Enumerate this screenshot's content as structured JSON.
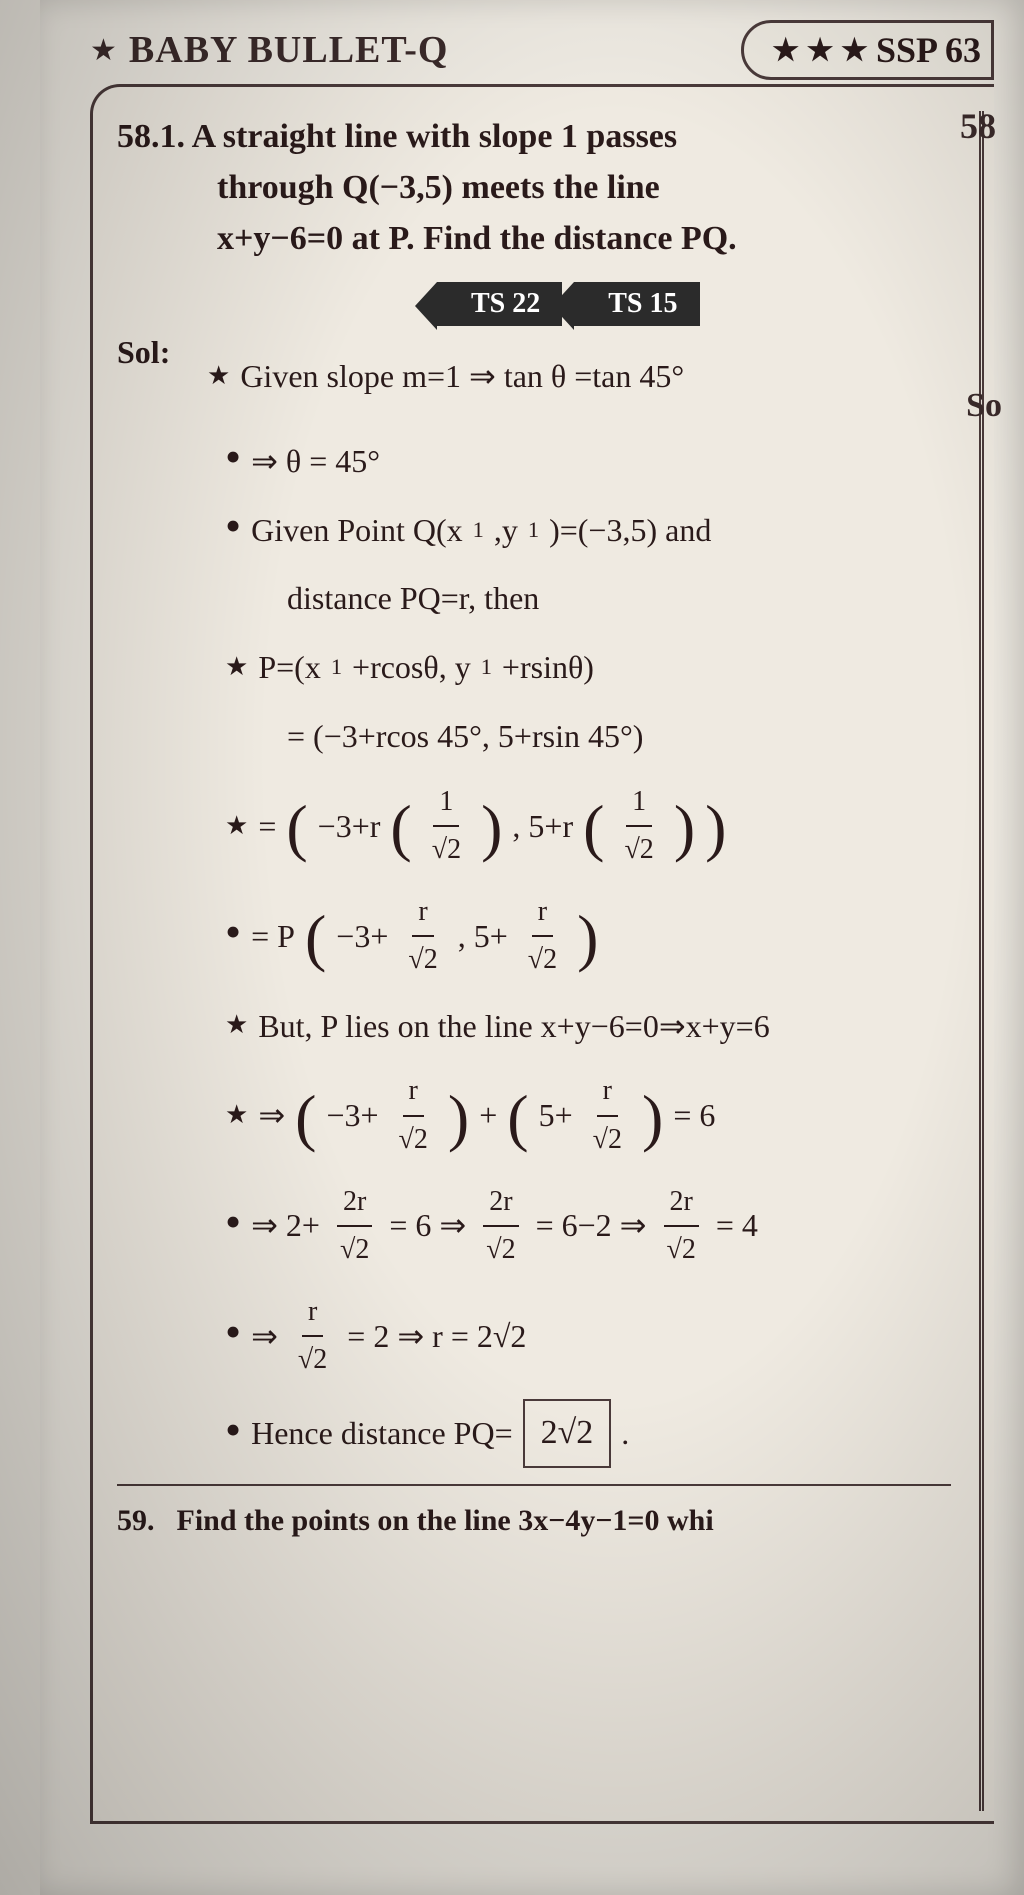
{
  "header": {
    "title": "BABY BULLET-Q",
    "ssp_stars": "★ ★ ★",
    "ssp_label": "SSP 63"
  },
  "gutter": {
    "top_num": "58",
    "mid_label": "So"
  },
  "question": {
    "number": "58.1.",
    "line1": "A straight line with slope 1 passes",
    "line2": "through Q(−3,5) meets the line",
    "line3": "x+y−6=0 at P. Find the distance PQ."
  },
  "tags": {
    "ts1": "TS 22",
    "ts2": "TS 15"
  },
  "sol": {
    "label": "Sol:",
    "l1a": "Given slope m=1 ⇒ tan θ =tan 45°",
    "l2": "⇒ θ = 45°",
    "l3a": "Given Point Q(x",
    "l3b": ",y",
    "l3c": ")=(−3,5) and",
    "l3d": "distance PQ=r, then",
    "l4a": "P=(x",
    "l4b": "+rcosθ, y",
    "l4c": "+rsinθ)",
    "l5": "= (−3+rcos 45°, 5+rsin 45°)",
    "eq6_pre": "=",
    "eq6_a": "−3+r",
    "eq6_b": ", 5+r",
    "frac1_n": "1",
    "frac1_d": "√2",
    "eq7_pre": "= P",
    "eq7_a": "−3+",
    "eq7_b": ", 5+",
    "fracr_n": "r",
    "fracr_d": "√2",
    "l8": "But, P lies on the line x+y−6=0⇒x+y=6",
    "eq9_pre": "⇒",
    "eq9_a": "−3+",
    "eq9_b": "+",
    "eq9_c": "5+",
    "eq9_eq": "= 6",
    "eq10_a": "⇒ 2+",
    "eq10_b": "= 6 ⇒",
    "eq10_c": "= 6−2 ⇒",
    "eq10_d": "= 4",
    "frac2r_n": "2r",
    "frac2r_d": "√2",
    "eq11_a": "⇒",
    "eq11_b": "= 2 ⇒ r = 2√2",
    "l12": "Hence distance PQ=",
    "ans": "2√2"
  },
  "q59": {
    "num": "59.",
    "text": "Find the points on the line 3x−4y−1=0 whi"
  }
}
